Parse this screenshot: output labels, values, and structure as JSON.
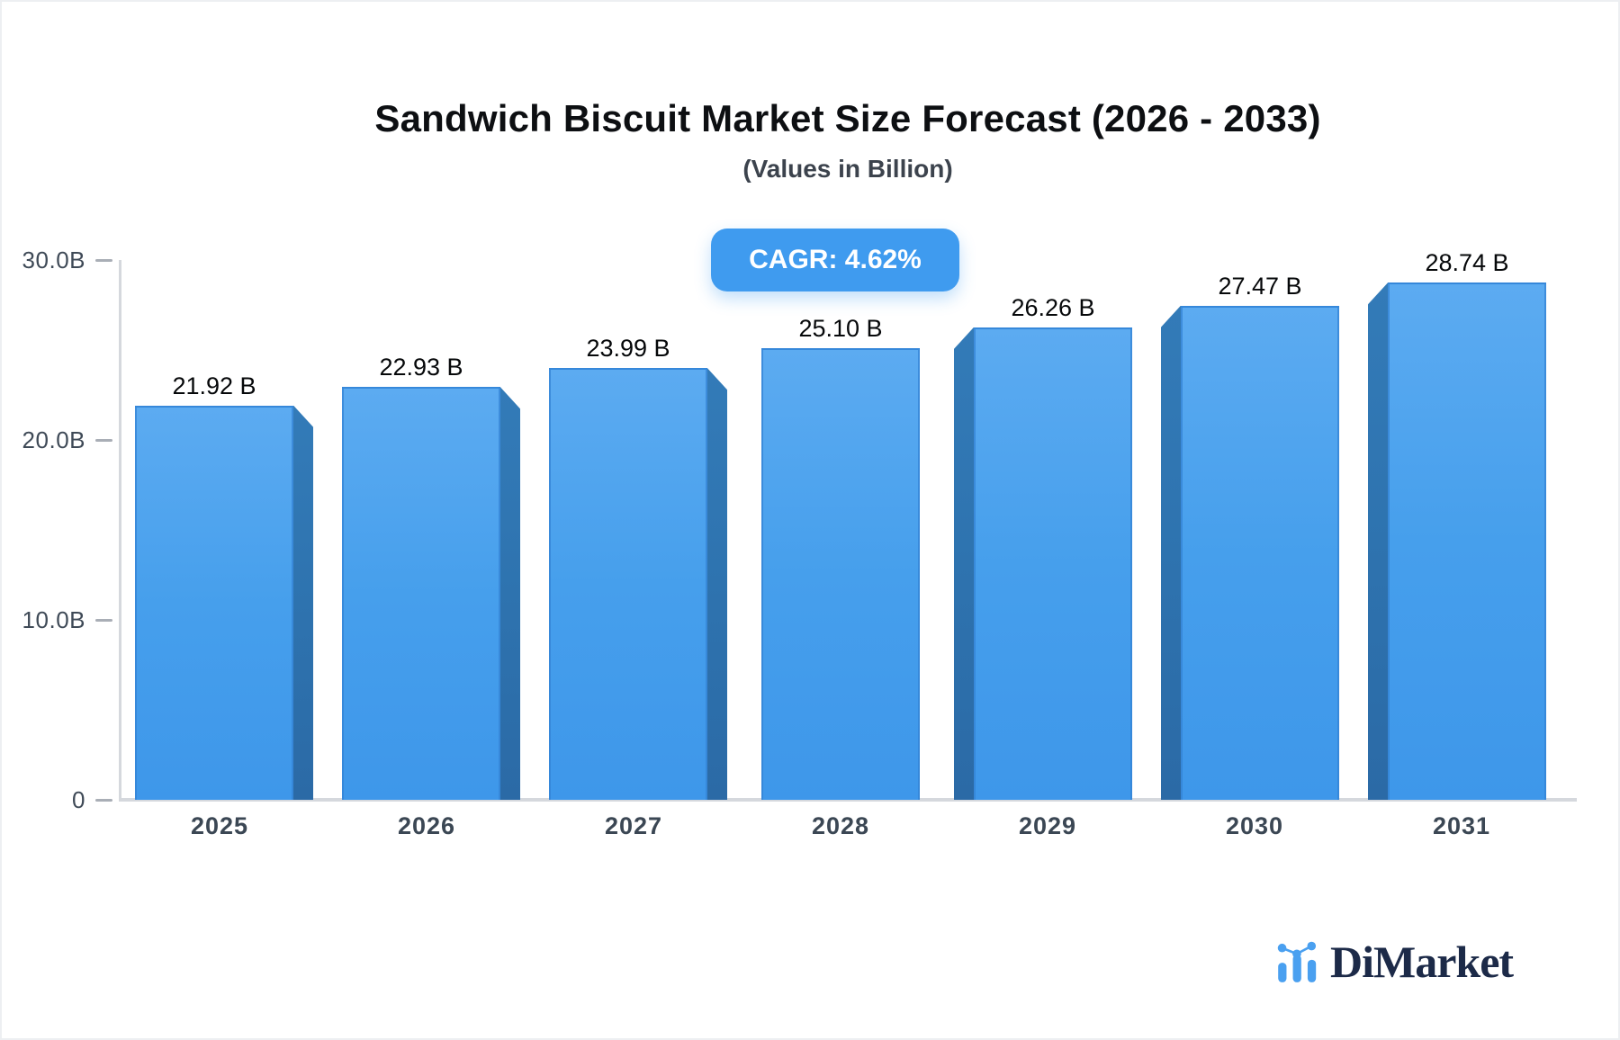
{
  "chart_data": {
    "type": "bar",
    "title": "Sandwich Biscuit Market Size Forecast (2026 - 2033)",
    "subtitle": "(Values in Billion)",
    "cagr_label": "CAGR: 4.62%",
    "categories": [
      "2025",
      "2026",
      "2027",
      "2028",
      "2029",
      "2030",
      "2031"
    ],
    "values": [
      21.92,
      22.93,
      23.99,
      25.1,
      26.26,
      27.47,
      28.74
    ],
    "value_labels": [
      "21.92 B",
      "22.93 B",
      "23.99 B",
      "25.10 B",
      "26.26 B",
      "27.47 B",
      "28.74 B"
    ],
    "unit": "Billion",
    "ylim": [
      0,
      30
    ],
    "yticks": [
      {
        "label": "30.0B",
        "value": 30
      },
      {
        "label": "20.0B",
        "value": 20
      },
      {
        "label": "10.0B",
        "value": 10
      },
      {
        "label": "0",
        "value": 0
      }
    ],
    "grid": false,
    "legend": null,
    "bar_color": "#469fec",
    "bar_side_color": "#2e73af",
    "axis_color": "#d5d8dd",
    "badge_color": "#3f9bef"
  },
  "logo": {
    "text": "DiMarket",
    "icon": "bar-chart-logo-icon",
    "text_color": "#1c2a48",
    "accent_color": "#4aa0f0"
  }
}
